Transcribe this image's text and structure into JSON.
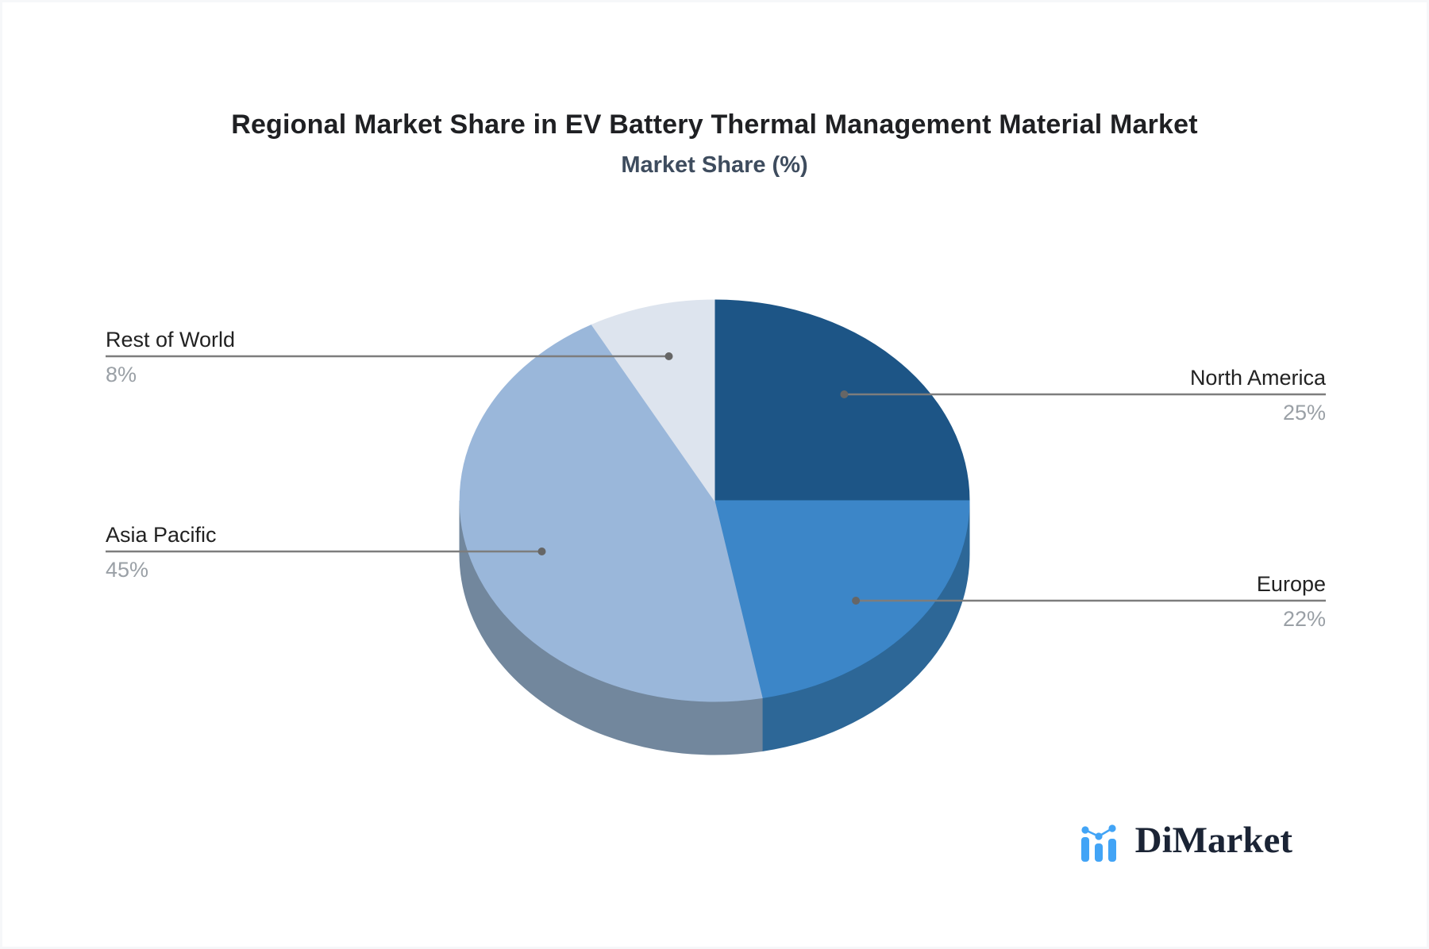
{
  "header": {
    "title": "Regional Market Share in EV Battery Thermal Management Material Market",
    "subtitle": "Market Share (%)"
  },
  "chart_data": {
    "type": "pie",
    "title": "Regional Market Share in EV Battery Thermal Management Material Market",
    "subtitle": "Market Share (%)",
    "unit": "%",
    "effect_3d": true,
    "start_angle": "12-o-clock",
    "direction": "clockwise",
    "slices": [
      {
        "label": "North America",
        "value": 25,
        "pct_label": "25%",
        "color": "#1d5586",
        "side_color": "#16436b",
        "label_side": "right"
      },
      {
        "label": "Europe",
        "value": 22,
        "pct_label": "22%",
        "color": "#3c86c8",
        "side_color": "#2d6797",
        "label_side": "right"
      },
      {
        "label": "Asia Pacific",
        "value": 45,
        "pct_label": "45%",
        "color": "#9ab7da",
        "side_color": "#72879d",
        "label_side": "left"
      },
      {
        "label": "Rest of World",
        "value": 8,
        "pct_label": "8%",
        "color": "#dde4ee",
        "side_color": "#aab8c9",
        "label_side": "left"
      }
    ],
    "leader_line_color": "#7d7d7d",
    "leader_dot_color": "#666666",
    "label_text_color": "#222222",
    "pct_text_color": "#9aa0a6",
    "legend": "none",
    "background": "#ffffff"
  },
  "branding": {
    "logo_text": "DiMarket",
    "logo_text_color": "#1b2435",
    "logo_icon_color": "#42a4f6",
    "logo_icon": "mini-bar-line-chart-icon"
  }
}
